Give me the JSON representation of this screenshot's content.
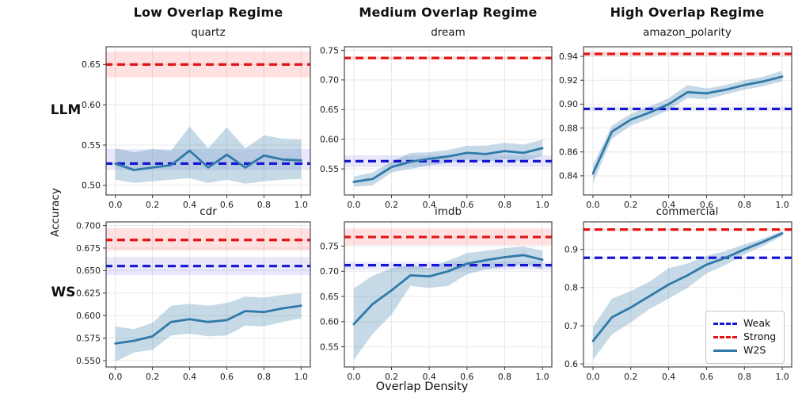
{
  "figure": {
    "column_headers": [
      "Low Overlap Regime",
      "Medium Overlap Regime",
      "High Overlap Regime"
    ],
    "row_labels": [
      "LLM",
      "WS"
    ],
    "ylabel": "Accuracy",
    "xlabel": "Overlap Density",
    "colors": {
      "weak": "#1515d3",
      "strong": "#e41414",
      "w2s": "#2f79a8",
      "w2s_band": "#4e8ab5",
      "weak_band": "#5050dc",
      "strong_band": "#ff5a5a",
      "grid": "#e8e8e8",
      "spine": "#3a3a3a"
    },
    "legend": {
      "items": [
        {
          "label": "Weak",
          "style": "dashed",
          "color": "#1515d3"
        },
        {
          "label": "Strong",
          "style": "dashed",
          "color": "#e41414"
        },
        {
          "label": "W2S",
          "style": "solid",
          "color": "#2f79a8"
        }
      ]
    }
  },
  "chart_data": [
    {
      "type": "line",
      "title": "quartz",
      "regime": "Low Overlap Regime",
      "row": "LLM",
      "x": [
        0.0,
        0.1,
        0.2,
        0.3,
        0.4,
        0.5,
        0.6,
        0.7,
        0.8,
        0.9,
        1.0
      ],
      "xticks": [
        0.0,
        0.2,
        0.4,
        0.6,
        0.8,
        1.0
      ],
      "yticks": [
        0.5,
        0.55,
        0.6,
        0.65
      ],
      "ytick_decimals": 2,
      "ylim": [
        0.488,
        0.672
      ],
      "weak": {
        "y": 0.527,
        "band": [
          0.519,
          0.545
        ]
      },
      "strong": {
        "y": 0.65,
        "band": [
          0.634,
          0.666
        ]
      },
      "w2s": {
        "y": [
          0.527,
          0.519,
          0.522,
          0.525,
          0.543,
          0.522,
          0.538,
          0.522,
          0.537,
          0.532,
          0.531
        ],
        "hi": [
          0.546,
          0.541,
          0.545,
          0.543,
          0.573,
          0.546,
          0.572,
          0.546,
          0.562,
          0.558,
          0.557
        ],
        "lo": [
          0.507,
          0.503,
          0.505,
          0.507,
          0.509,
          0.503,
          0.507,
          0.502,
          0.505,
          0.507,
          0.508
        ]
      }
    },
    {
      "type": "line",
      "title": "dream",
      "regime": "Medium Overlap Regime",
      "row": "LLM",
      "x": [
        0.0,
        0.1,
        0.2,
        0.3,
        0.4,
        0.5,
        0.6,
        0.7,
        0.8,
        0.9,
        1.0
      ],
      "xticks": [
        0.0,
        0.2,
        0.4,
        0.6,
        0.8,
        1.0
      ],
      "yticks": [
        0.55,
        0.6,
        0.65,
        0.7,
        0.75
      ],
      "ytick_decimals": 2,
      "ylim": [
        0.506,
        0.756
      ],
      "weak": {
        "y": 0.563,
        "band": [
          0.553,
          0.573
        ]
      },
      "strong": {
        "y": 0.737,
        "band": [
          0.734,
          0.74
        ]
      },
      "w2s": {
        "y": [
          0.528,
          0.533,
          0.553,
          0.562,
          0.567,
          0.571,
          0.577,
          0.575,
          0.58,
          0.577,
          0.585
        ],
        "hi": [
          0.537,
          0.544,
          0.562,
          0.577,
          0.578,
          0.582,
          0.589,
          0.589,
          0.594,
          0.591,
          0.599
        ],
        "lo": [
          0.52,
          0.522,
          0.544,
          0.55,
          0.556,
          0.56,
          0.566,
          0.562,
          0.567,
          0.562,
          0.572
        ]
      }
    },
    {
      "type": "line",
      "title": "amazon_polarity",
      "regime": "High Overlap Regime",
      "row": "LLM",
      "x": [
        0.0,
        0.1,
        0.2,
        0.3,
        0.4,
        0.5,
        0.6,
        0.7,
        0.8,
        0.9,
        1.0
      ],
      "xticks": [
        0.0,
        0.2,
        0.4,
        0.6,
        0.8,
        1.0
      ],
      "yticks": [
        0.84,
        0.86,
        0.88,
        0.9,
        0.92,
        0.94
      ],
      "ytick_decimals": 2,
      "ylim": [
        0.824,
        0.948
      ],
      "weak": {
        "y": 0.896,
        "band": [
          0.894,
          0.898
        ]
      },
      "strong": {
        "y": 0.942,
        "band": [
          0.94,
          0.944
        ]
      },
      "w2s": {
        "y": [
          0.842,
          0.877,
          0.887,
          0.893,
          0.9,
          0.91,
          0.909,
          0.912,
          0.916,
          0.919,
          0.923
        ],
        "hi": [
          0.849,
          0.882,
          0.892,
          0.898,
          0.905,
          0.916,
          0.913,
          0.916,
          0.92,
          0.923,
          0.928
        ],
        "lo": [
          0.834,
          0.871,
          0.882,
          0.888,
          0.895,
          0.905,
          0.904,
          0.908,
          0.912,
          0.915,
          0.919
        ]
      }
    },
    {
      "type": "line",
      "title": "cdr",
      "regime": "Low Overlap Regime",
      "row": "WS",
      "x": [
        0.0,
        0.1,
        0.2,
        0.3,
        0.4,
        0.5,
        0.6,
        0.7,
        0.8,
        0.9,
        1.0
      ],
      "xticks": [
        0.0,
        0.2,
        0.4,
        0.6,
        0.8,
        1.0
      ],
      "yticks": [
        0.55,
        0.575,
        0.6,
        0.625,
        0.65,
        0.675,
        0.7
      ],
      "ytick_decimals": 3,
      "ylim": [
        0.543,
        0.704
      ],
      "weak": {
        "y": 0.655,
        "band": [
          0.645,
          0.665
        ]
      },
      "strong": {
        "y": 0.684,
        "band": [
          0.672,
          0.697
        ]
      },
      "w2s": {
        "y": [
          0.569,
          0.572,
          0.577,
          0.593,
          0.596,
          0.593,
          0.595,
          0.605,
          0.604,
          0.608,
          0.611
        ],
        "hi": [
          0.588,
          0.585,
          0.592,
          0.611,
          0.613,
          0.611,
          0.614,
          0.621,
          0.62,
          0.623,
          0.625
        ],
        "lo": [
          0.549,
          0.559,
          0.562,
          0.578,
          0.58,
          0.577,
          0.578,
          0.589,
          0.588,
          0.593,
          0.597
        ]
      }
    },
    {
      "type": "line",
      "title": "imdb",
      "regime": "Medium Overlap Regime",
      "row": "WS",
      "x": [
        0.0,
        0.1,
        0.2,
        0.3,
        0.4,
        0.5,
        0.6,
        0.7,
        0.8,
        0.9,
        1.0
      ],
      "xticks": [
        0.0,
        0.2,
        0.4,
        0.6,
        0.8,
        1.0
      ],
      "yticks": [
        0.55,
        0.6,
        0.65,
        0.7,
        0.75
      ],
      "ytick_decimals": 2,
      "ylim": [
        0.51,
        0.798
      ],
      "weak": {
        "y": 0.712,
        "band": [
          0.703,
          0.719
        ]
      },
      "strong": {
        "y": 0.768,
        "band": [
          0.752,
          0.785
        ]
      },
      "w2s": {
        "y": [
          0.595,
          0.635,
          0.662,
          0.692,
          0.69,
          0.7,
          0.715,
          0.722,
          0.728,
          0.732,
          0.723
        ],
        "hi": [
          0.666,
          0.691,
          0.706,
          0.712,
          0.706,
          0.721,
          0.736,
          0.741,
          0.746,
          0.749,
          0.741
        ],
        "lo": [
          0.524,
          0.576,
          0.614,
          0.671,
          0.667,
          0.671,
          0.694,
          0.704,
          0.709,
          0.714,
          0.704
        ]
      }
    },
    {
      "type": "line",
      "title": "commercial",
      "regime": "High Overlap Regime",
      "row": "WS",
      "x": [
        0.0,
        0.1,
        0.2,
        0.3,
        0.4,
        0.5,
        0.6,
        0.7,
        0.8,
        0.9,
        1.0
      ],
      "xticks": [
        0.0,
        0.2,
        0.4,
        0.6,
        0.8,
        1.0
      ],
      "yticks": [
        0.6,
        0.7,
        0.8,
        0.9
      ],
      "ytick_decimals": 1,
      "ylim": [
        0.592,
        0.972
      ],
      "weak": {
        "y": 0.878,
        "band": [
          0.876,
          0.88
        ]
      },
      "strong": {
        "y": 0.952,
        "band": [
          0.95,
          0.954
        ]
      },
      "w2s": {
        "y": [
          0.66,
          0.722,
          0.748,
          0.778,
          0.808,
          0.832,
          0.86,
          0.878,
          0.9,
          0.92,
          0.942
        ],
        "hi": [
          0.697,
          0.771,
          0.791,
          0.816,
          0.851,
          0.863,
          0.883,
          0.896,
          0.913,
          0.929,
          0.949
        ],
        "lo": [
          0.611,
          0.677,
          0.709,
          0.744,
          0.771,
          0.799,
          0.837,
          0.859,
          0.887,
          0.909,
          0.935
        ]
      }
    }
  ]
}
